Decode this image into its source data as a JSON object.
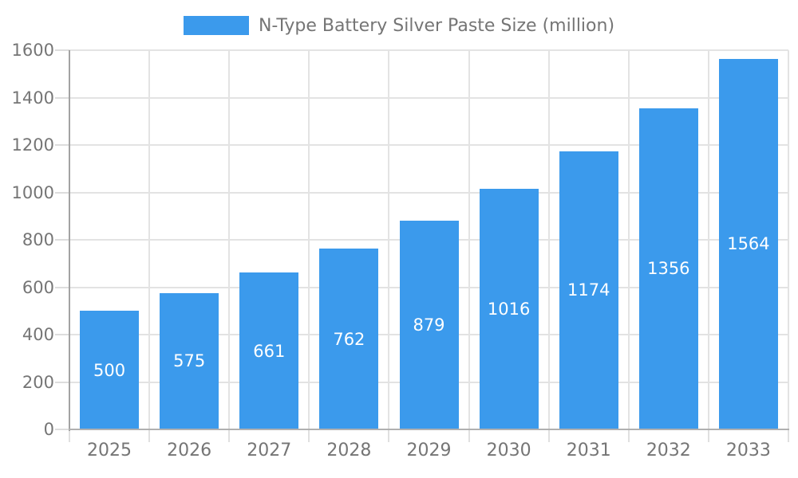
{
  "chart_data": {
    "type": "bar",
    "title": "N-Type Battery Silver Paste Size (million)",
    "legend": {
      "label": "N-Type Battery Silver Paste Size (million)",
      "position": "top-center",
      "swatch_color": "#3b9aec"
    },
    "categories": [
      "2025",
      "2026",
      "2027",
      "2028",
      "2029",
      "2030",
      "2031",
      "2032",
      "2033"
    ],
    "series": [
      {
        "name": "N-Type Battery Silver Paste Size (million)",
        "values": [
          500,
          575,
          661,
          762,
          879,
          1016,
          1174,
          1356,
          1564
        ]
      }
    ],
    "value_labels": {
      "visible": true,
      "position": "inside-center",
      "color": "#ffffff"
    },
    "xlabel": "",
    "ylabel": "",
    "ylim": [
      0,
      1600
    ],
    "ytick_step": 200,
    "yticks": [
      0,
      200,
      400,
      600,
      800,
      1000,
      1200,
      1400,
      1600
    ],
    "grid": true,
    "colors": {
      "bar": "#3b9aec",
      "gridline": "#e3e3e3",
      "axis_line": "#a8a8a8",
      "tick": "#dddddd",
      "axis_text": "#757575",
      "background": "#ffffff"
    }
  }
}
